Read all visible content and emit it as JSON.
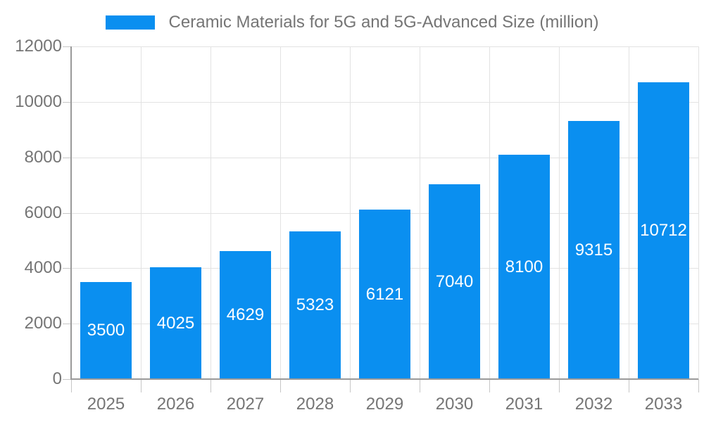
{
  "chart_data": {
    "type": "bar",
    "title": "",
    "legend": {
      "label": "Ceramic Materials for 5G and 5G-Advanced Size (million)",
      "position": "top"
    },
    "categories": [
      "2025",
      "2026",
      "2027",
      "2028",
      "2029",
      "2030",
      "2031",
      "2032",
      "2033"
    ],
    "series": [
      {
        "name": "Ceramic Materials for 5G and 5G-Advanced Size (million)",
        "values": [
          3500,
          4025,
          4629,
          5323,
          6121,
          7040,
          8100,
          9315,
          10712
        ]
      }
    ],
    "value_labels": [
      "3500",
      "4025",
      "4629",
      "5323",
      "6121",
      "7040",
      "8100",
      "9315",
      "10712"
    ],
    "xlabel": "",
    "ylabel": "",
    "ylim": [
      0,
      12000
    ],
    "yticks": [
      0,
      2000,
      4000,
      6000,
      8000,
      10000,
      12000
    ],
    "grid": true,
    "colors": {
      "bar": "#0a8ff0",
      "grid": "#e2e2e2",
      "axis": "#9a9a9a",
      "tick": "#c6c6c6",
      "axis_text": "#757575",
      "value_text": "#ffffff",
      "background": "#ffffff"
    }
  }
}
